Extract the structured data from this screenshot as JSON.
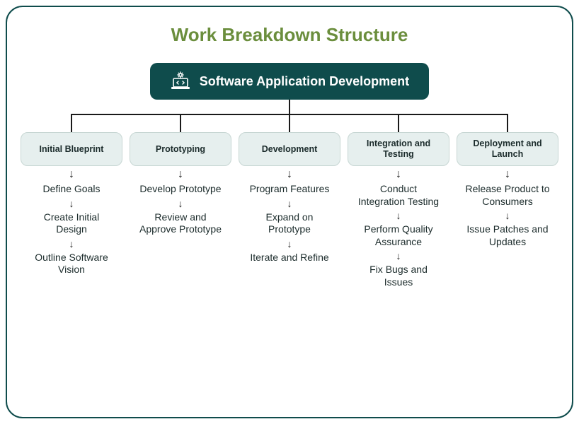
{
  "diagram": {
    "type": "tree",
    "title": "Work Breakdown Structure",
    "title_color": "#6b8e3d",
    "title_fontsize": 26,
    "frame_border_color": "#0f4c4c",
    "frame_border_radius": 24,
    "background_color": "#ffffff",
    "root": {
      "label": "Software Application Development",
      "bg_color": "#0f4c4c",
      "text_color": "#ffffff",
      "fontsize": 18,
      "icon": "laptop-code-gear-icon"
    },
    "branch_header_style": {
      "bg_color": "#e6efee",
      "border_color": "#c7d6d3",
      "border_radius": 10,
      "fontsize": 12.5,
      "text_color": "#1b2b2b"
    },
    "connector_color": "#1a1a1a",
    "arrow_glyph": "↓",
    "branches": [
      {
        "label": "Initial Blueprint",
        "tasks": [
          "Define Goals",
          "Create Initial Design",
          "Outline Software Vision"
        ]
      },
      {
        "label": "Prototyping",
        "tasks": [
          "Develop Prototype",
          "Review and Approve Prototype"
        ]
      },
      {
        "label": "Development",
        "tasks": [
          "Program Features",
          "Expand on Prototype",
          "Iterate and Refine"
        ]
      },
      {
        "label": "Integration and Testing",
        "tasks": [
          "Conduct Integration Testing",
          "Perform Quality Assurance",
          "Fix Bugs and Issues"
        ]
      },
      {
        "label": "Deployment and Launch",
        "tasks": [
          "Release Product to Consumers",
          "Issue Patches and Updates"
        ]
      }
    ]
  }
}
